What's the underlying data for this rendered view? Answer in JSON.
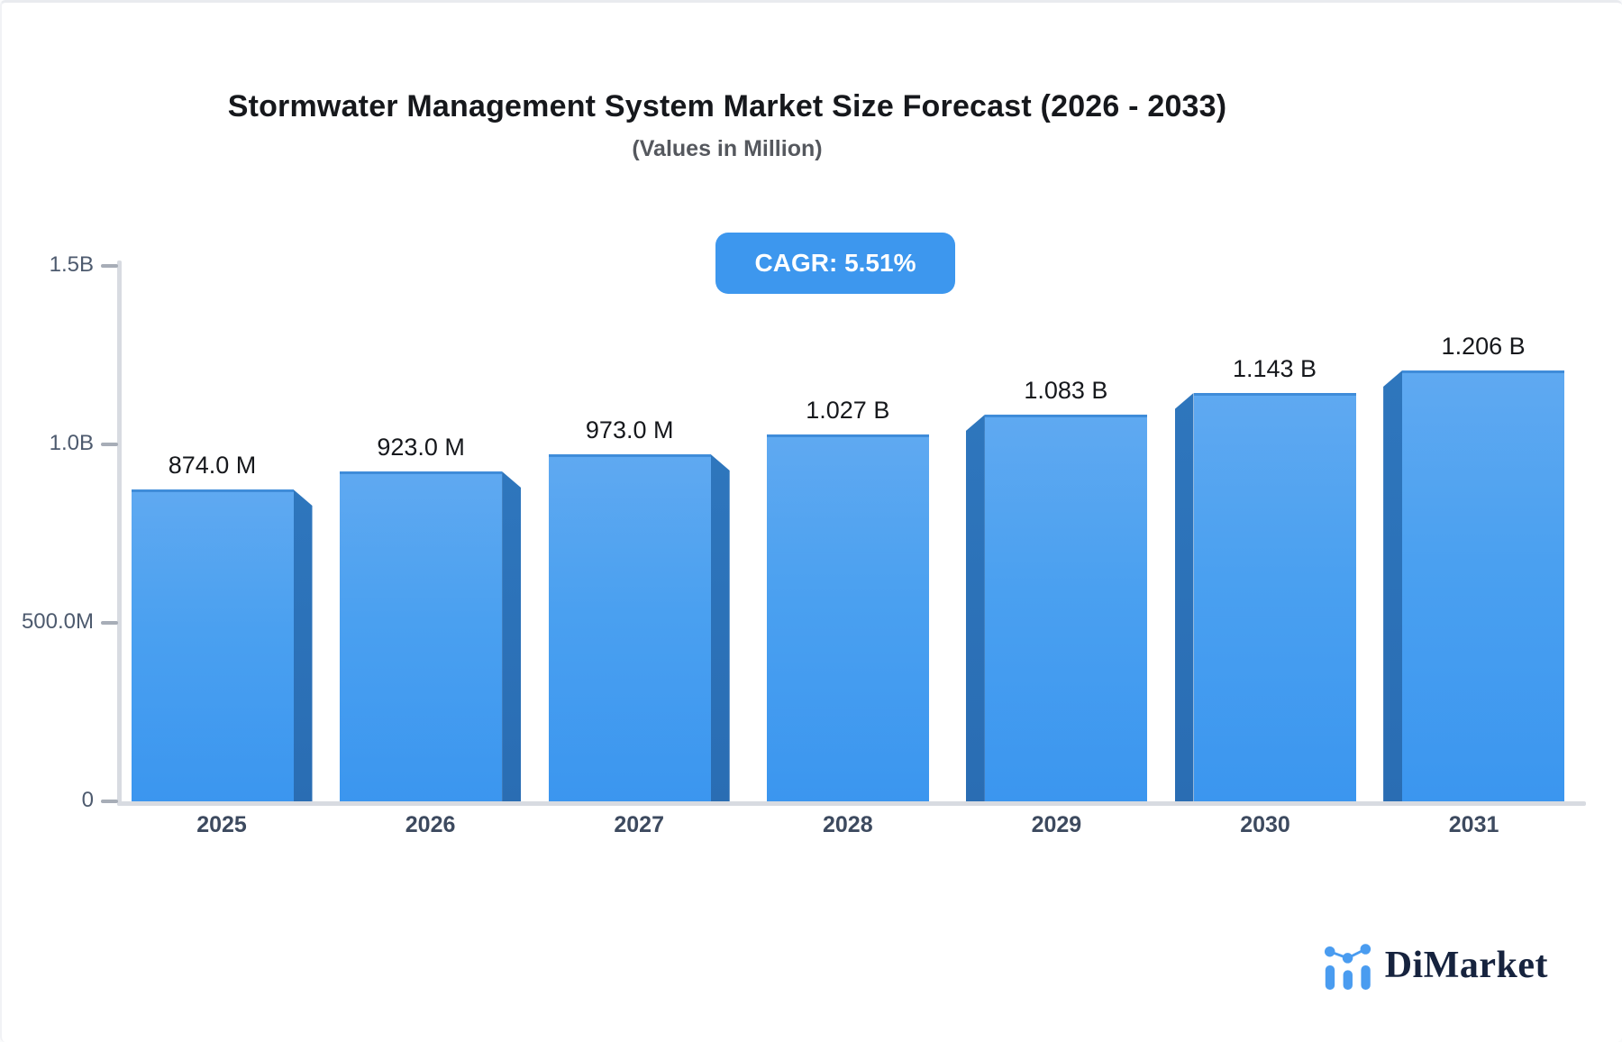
{
  "title": "Stormwater Management System Market Size Forecast (2026 - 2033)",
  "subtitle": "(Values in Million)",
  "badge": {
    "label": "CAGR: 5.51%",
    "bg": "#3d97ee",
    "text_color": "#ffffff"
  },
  "chart_data": {
    "type": "bar",
    "title": "Stormwater Management System Market Size Forecast (2026 - 2033)",
    "subtitle": "(Values in Million)",
    "categories": [
      "2025",
      "2026",
      "2027",
      "2028",
      "2029",
      "2030",
      "2031"
    ],
    "values": [
      874,
      923,
      973,
      1027,
      1083,
      1143,
      1206
    ],
    "value_labels": [
      "874.0 M",
      "923.0 M",
      "973.0 M",
      "1.027 B",
      "1.083 B",
      "1.143 B",
      "1.206 B"
    ],
    "unit": "USD Million",
    "xlabel": "",
    "ylabel": "",
    "ylim": [
      0,
      1500
    ],
    "yticks": [
      {
        "label": "1.5B",
        "value": 1500
      },
      {
        "label": "1.0B",
        "value": 1000
      },
      {
        "label": "500.0M",
        "value": 500
      },
      {
        "label": "0",
        "value": 0
      }
    ],
    "grid": false,
    "legend": false,
    "colors": {
      "bar_face_top": "#5fa9f1",
      "bar_face_bottom": "#3b96ef",
      "bar_face_edge": "#3f8cd9",
      "bar_side": "#2c72b9",
      "axis_line": "#d8dbe1",
      "tick_dash": "#a7adb7",
      "ytick_text": "#4d5a6e",
      "xtick_text": "#3d4a5f",
      "value_text": "#16181c"
    }
  },
  "footer": {
    "brand": "DiMarket",
    "logo_icon": "bar-line-chart-icon",
    "logo_blue": "#4a9cf0",
    "logo_navy": "#16233e"
  }
}
